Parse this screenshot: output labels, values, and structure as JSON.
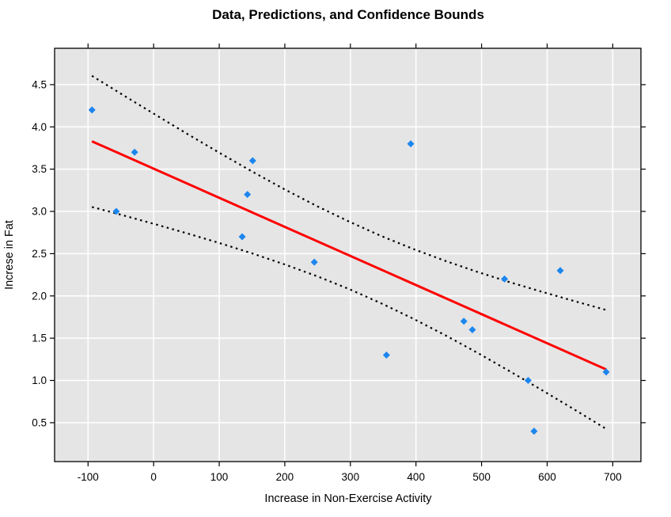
{
  "chart_data": {
    "type": "scatter",
    "title": "Data, Predictions, and Confidence Bounds",
    "xlabel": "Increase in Non-Exercise Activity",
    "ylabel": "Increse in Fat",
    "xlim": [
      -151,
      743
    ],
    "ylim": [
      0.04,
      4.93
    ],
    "x_ticks": [
      -100,
      0,
      100,
      200,
      300,
      400,
      500,
      600,
      700
    ],
    "x_tick_labels": [
      "-100",
      "0",
      "100",
      "200",
      "300",
      "400",
      "500",
      "600",
      "700"
    ],
    "y_ticks": [
      0.5,
      1.0,
      1.5,
      2.0,
      2.5,
      3.0,
      3.5,
      4.0,
      4.5
    ],
    "y_tick_labels": [
      "0.5",
      "1.0",
      "1.5",
      "2.0",
      "2.5",
      "3.0",
      "3.5",
      "4.0",
      "4.5"
    ],
    "grid": true,
    "legend": "none",
    "series": [
      {
        "name": "data-points",
        "kind": "scatter",
        "marker": "diamond",
        "color": "#1C86EE",
        "points": [
          [
            -94,
            4.2
          ],
          [
            -57,
            3.0
          ],
          [
            -29,
            3.7
          ],
          [
            135,
            2.7
          ],
          [
            143,
            3.2
          ],
          [
            151,
            3.6
          ],
          [
            245,
            2.4
          ],
          [
            355,
            1.3
          ],
          [
            392,
            3.8
          ],
          [
            473,
            1.7
          ],
          [
            486,
            1.6
          ],
          [
            535,
            2.2
          ],
          [
            571,
            1.0
          ],
          [
            580,
            0.4
          ],
          [
            620,
            2.3
          ],
          [
            690,
            1.1
          ]
        ]
      },
      {
        "name": "regression-line",
        "kind": "line",
        "style": "solid",
        "color": "#FF0000",
        "points": [
          [
            -94,
            3.829
          ],
          [
            690,
            1.13
          ]
        ]
      },
      {
        "name": "upper-confidence-bound",
        "kind": "line",
        "style": "dotted",
        "color": "#000000",
        "points": [
          [
            -94,
            4.604
          ],
          [
            -45,
            4.369
          ],
          [
            4,
            4.138
          ],
          [
            53,
            3.909
          ],
          [
            102,
            3.686
          ],
          [
            151,
            3.469
          ],
          [
            200,
            3.26
          ],
          [
            249,
            3.063
          ],
          [
            298,
            2.879
          ],
          [
            347,
            2.709
          ],
          [
            396,
            2.555
          ],
          [
            445,
            2.414
          ],
          [
            494,
            2.284
          ],
          [
            543,
            2.163
          ],
          [
            592,
            2.049
          ],
          [
            641,
            1.94
          ],
          [
            690,
            1.834
          ]
        ]
      },
      {
        "name": "lower-confidence-bound",
        "kind": "line",
        "style": "dotted",
        "color": "#000000",
        "points": [
          [
            -94,
            3.053
          ],
          [
            -45,
            2.951
          ],
          [
            4,
            2.845
          ],
          [
            53,
            2.736
          ],
          [
            102,
            2.622
          ],
          [
            151,
            2.502
          ],
          [
            200,
            2.373
          ],
          [
            249,
            2.234
          ],
          [
            298,
            2.081
          ],
          [
            347,
            1.913
          ],
          [
            396,
            1.73
          ],
          [
            445,
            1.533
          ],
          [
            494,
            1.326
          ],
          [
            543,
            1.109
          ],
          [
            592,
            0.886
          ],
          [
            641,
            0.658
          ],
          [
            690,
            0.427
          ]
        ]
      }
    ],
    "colors": {
      "plot_background": "#E5E5E5",
      "outer_background": "#FFFFFF",
      "grid_line": "#FFFFFF",
      "axis_box": "#000000",
      "tick": "#000000",
      "text": "#000000"
    }
  }
}
